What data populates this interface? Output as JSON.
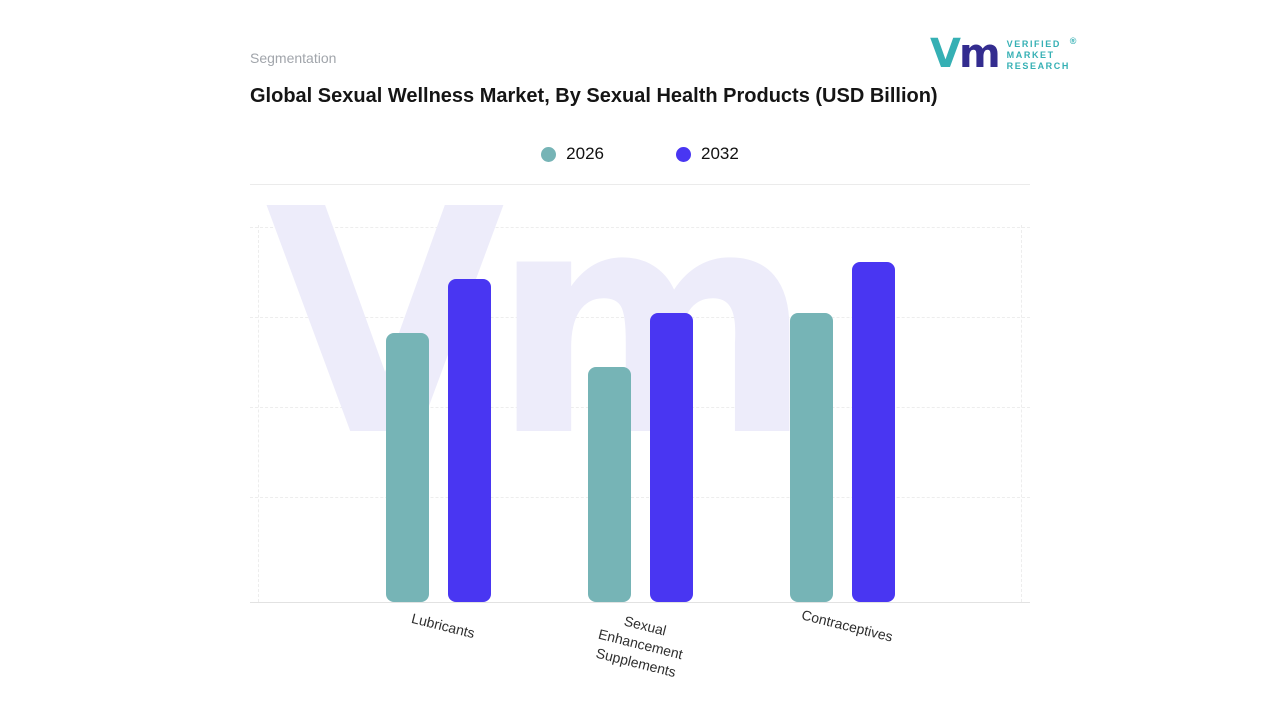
{
  "header": {
    "segmentation_label": "Segmentation"
  },
  "logo": {
    "mark_v": "V",
    "mark_m": "m",
    "lines": [
      "VERIFIED",
      "MARKET",
      "RESEARCH"
    ],
    "registered": "®",
    "teal": "#35b0b4",
    "indigo": "#332c8f"
  },
  "title": "Global Sexual Wellness Market, By Sexual Health Products (USD Billion)",
  "legend": [
    {
      "label": "2026",
      "color": "#76b4b6"
    },
    {
      "label": "2032",
      "color": "#4936f2"
    }
  ],
  "chart_data": {
    "type": "bar",
    "title": "Global Sexual Wellness Market, By Sexual Health Products (USD Billion)",
    "categories": [
      "Lubricants",
      "Sexual Enhancement Supplements",
      "Contraceptives"
    ],
    "series": [
      {
        "name": "2026",
        "color": "#76b4b6",
        "values": [
          79,
          69,
          85
        ]
      },
      {
        "name": "2032",
        "color": "#4936f2",
        "values": [
          95,
          85,
          100
        ]
      }
    ],
    "ylim": [
      0,
      100
    ],
    "xlabel": "",
    "ylabel": "",
    "grid": "dashed-horizontal",
    "legend_position": "top",
    "watermark": "Vm"
  }
}
